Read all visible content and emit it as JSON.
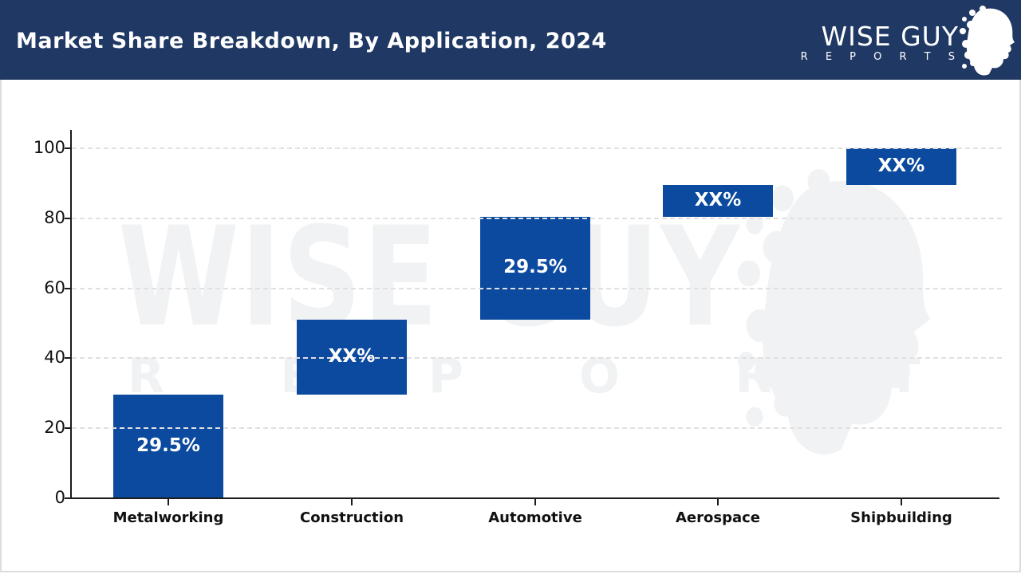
{
  "header": {
    "title": "Market Share Breakdown, By Application, 2024",
    "bg_color": "#1f3864",
    "logo": {
      "line1": "WISE GUY",
      "line2": "R E P O R T S",
      "head_icon": "dotted-head-profile-icon"
    }
  },
  "watermark": {
    "line1": "WISE GUY",
    "line2": "R E P O R T S",
    "head_icon": "dotted-head-profile-icon",
    "color": "#f1f2f4"
  },
  "chart_data": {
    "type": "bar",
    "subtype": "floating-waterfall-bars",
    "title": "Market Share Breakdown, By Application, 2024",
    "categories": [
      "Metalworking",
      "Construction",
      "Automotive",
      "Aerospace",
      "Shipbuilding"
    ],
    "bars": [
      {
        "category": "Metalworking",
        "label": "29.5%",
        "start": 0,
        "end": 29.5
      },
      {
        "category": "Construction",
        "label": "XX%",
        "start": 29.5,
        "end": 51
      },
      {
        "category": "Automotive",
        "label": "29.5%",
        "start": 51,
        "end": 80.5
      },
      {
        "category": "Aerospace",
        "label": "XX%",
        "start": 80.5,
        "end": 89.5
      },
      {
        "category": "Shipbuilding",
        "label": "XX%",
        "start": 89.5,
        "end": 100
      }
    ],
    "yticks": [
      0,
      20,
      40,
      60,
      80,
      100
    ],
    "ylim": [
      0,
      105
    ],
    "xlabel": "",
    "ylabel": "",
    "grid": "horizontal-dashed",
    "legend": "none",
    "bar_color": "#0b4a9e",
    "bar_label_color": "#ffffff",
    "grid_color": "#e0e0e0",
    "axis_color": "#1c1c1c"
  }
}
